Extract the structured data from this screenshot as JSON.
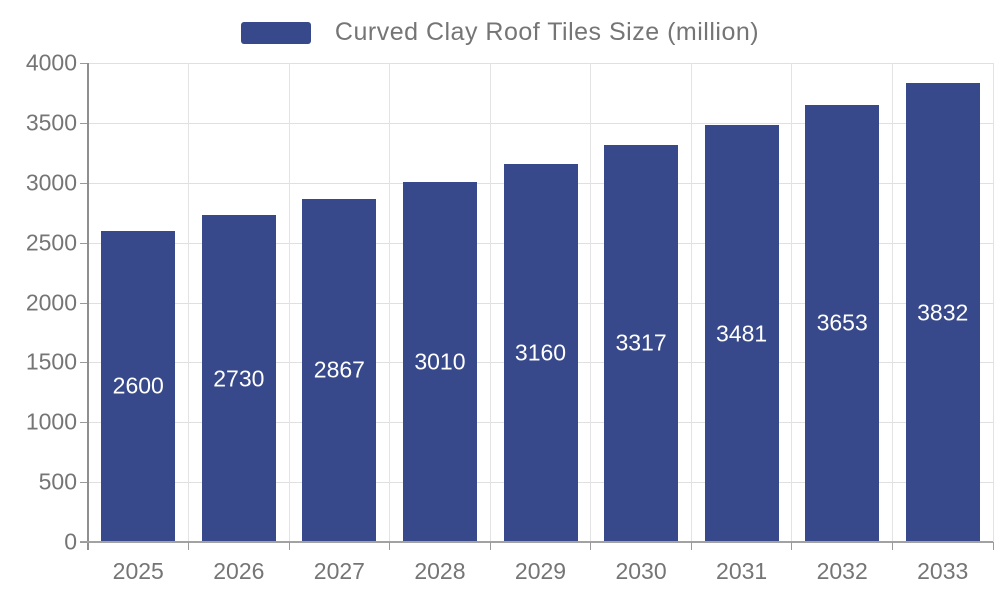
{
  "legend": {
    "label": "Curved Clay Roof Tiles Size (million)"
  },
  "colors": {
    "bar": "#37498a",
    "grid": "#e0e0e0",
    "axis": "#999999",
    "tick_label": "#757575",
    "value_label": "#ffffff",
    "legend_text": "#757575",
    "background": "#ffffff"
  },
  "chart_data": {
    "type": "bar",
    "title": "Curved Clay Roof Tiles Size (million)",
    "series": [
      {
        "name": "Curved Clay Roof Tiles Size (million)",
        "values": [
          2600,
          2730,
          2867,
          3010,
          3160,
          3317,
          3481,
          3653,
          3832
        ]
      }
    ],
    "categories": [
      "2025",
      "2026",
      "2027",
      "2028",
      "2029",
      "2030",
      "2031",
      "2032",
      "2033"
    ],
    "xlabel": "",
    "ylabel": "",
    "ylim": [
      0,
      4000
    ],
    "yticks": [
      0,
      500,
      1000,
      1500,
      2000,
      2500,
      3000,
      3500,
      4000
    ],
    "grid": true,
    "legend_position": "top-center",
    "value_labels": "inside-middle",
    "bar_color": "#37498a",
    "value_label_color": "#ffffff"
  }
}
